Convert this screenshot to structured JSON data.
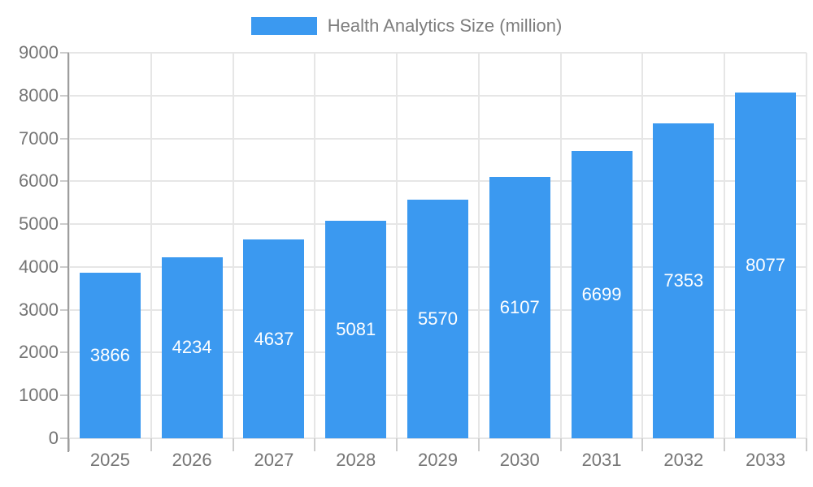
{
  "legend": {
    "label": "Health Analytics Size (million)"
  },
  "chart_data": {
    "type": "bar",
    "title": "",
    "xlabel": "",
    "ylabel": "",
    "categories": [
      "2025",
      "2026",
      "2027",
      "2028",
      "2029",
      "2030",
      "2031",
      "2032",
      "2033"
    ],
    "series": [
      {
        "name": "Health Analytics Size (million)",
        "values": [
          3866,
          4234,
          4637,
          5081,
          5570,
          6107,
          6699,
          7353,
          8077
        ]
      }
    ],
    "bar_value_labels": [
      "3866",
      "4234",
      "4637",
      "5081",
      "5570",
      "6107",
      "6699",
      "7353",
      "8077"
    ],
    "ylim": [
      0,
      9000
    ],
    "y_ticks": [
      0,
      1000,
      2000,
      3000,
      4000,
      5000,
      6000,
      7000,
      8000,
      9000
    ],
    "grid": true,
    "legend_position": "top"
  },
  "colors": {
    "bar": "#3b99f0",
    "bar_value_text": "#ffffff",
    "grid": "#e6e6e6",
    "axis_line": "#9e9e9e",
    "tick": "#cccccc",
    "axis_text": "#757575",
    "legend_text": "#7d7d7d",
    "background": "#ffffff"
  }
}
